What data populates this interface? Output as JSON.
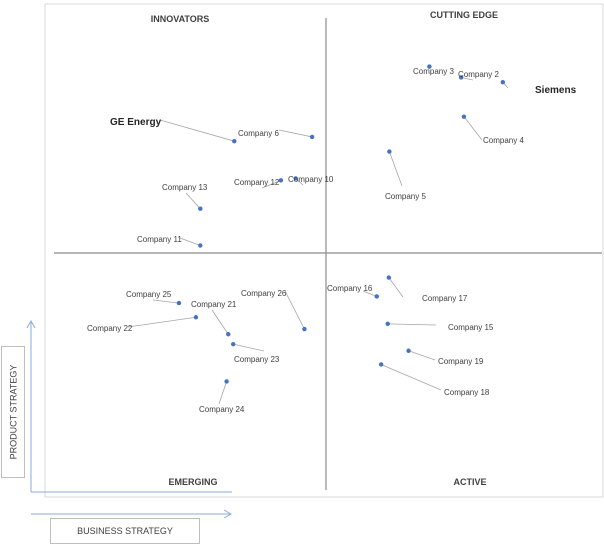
{
  "chart_data": {
    "type": "scatter",
    "quadrants": {
      "top_left": "INNOVATORS",
      "top_right": "CUTTING EDGE",
      "bottom_left": "EMERGING",
      "bottom_right": "ACTIVE"
    },
    "xlabel": "BUSINESS STRATEGY",
    "ylabel": "PRODUCT STRATEGY",
    "xlim": [
      0,
      100
    ],
    "ylim": [
      0,
      100
    ],
    "colors": {
      "point": "#4472c4",
      "divider": "#8c8c8c",
      "leader": "#a6a6a6",
      "frame": "#d9d9d9"
    },
    "points": [
      {
        "name": "Siemens",
        "x": 81.9,
        "y": 86.4,
        "emphasis": true
      },
      {
        "name": "Company 3",
        "x": 68.5,
        "y": 89.7
      },
      {
        "name": "Company 2",
        "x": 74.3,
        "y": 87.4
      },
      {
        "name": "Company 4",
        "x": 74.8,
        "y": 79.1
      },
      {
        "name": "Company 5",
        "x": 61.2,
        "y": 71.7
      },
      {
        "name": "GE Energy",
        "x": 32.9,
        "y": 73.9,
        "emphasis": true
      },
      {
        "name": "Company 6",
        "x": 47.1,
        "y": 74.8
      },
      {
        "name": "Company 12",
        "x": 41.4,
        "y": 65.6
      },
      {
        "name": "Company 10",
        "x": 44.1,
        "y": 66.0
      },
      {
        "name": "Company 13",
        "x": 26.7,
        "y": 59.6
      },
      {
        "name": "Company 11",
        "x": 26.7,
        "y": 51.8
      },
      {
        "name": "Company 16",
        "x": 58.9,
        "y": 41.0
      },
      {
        "name": "Company 17",
        "x": 61.1,
        "y": 45.0
      },
      {
        "name": "Company 15",
        "x": 60.9,
        "y": 35.2
      },
      {
        "name": "Company 19",
        "x": 64.7,
        "y": 29.5
      },
      {
        "name": "Company 18",
        "x": 59.7,
        "y": 26.6
      },
      {
        "name": "Company 25",
        "x": 22.8,
        "y": 39.6
      },
      {
        "name": "Company 22",
        "x": 25.9,
        "y": 36.6
      },
      {
        "name": "Company 21",
        "x": 31.8,
        "y": 33.0
      },
      {
        "name": "Company 26",
        "x": 45.7,
        "y": 34.1
      },
      {
        "name": "Company 23",
        "x": 32.7,
        "y": 30.9
      },
      {
        "name": "Company 24",
        "x": 31.5,
        "y": 23.0
      }
    ]
  }
}
